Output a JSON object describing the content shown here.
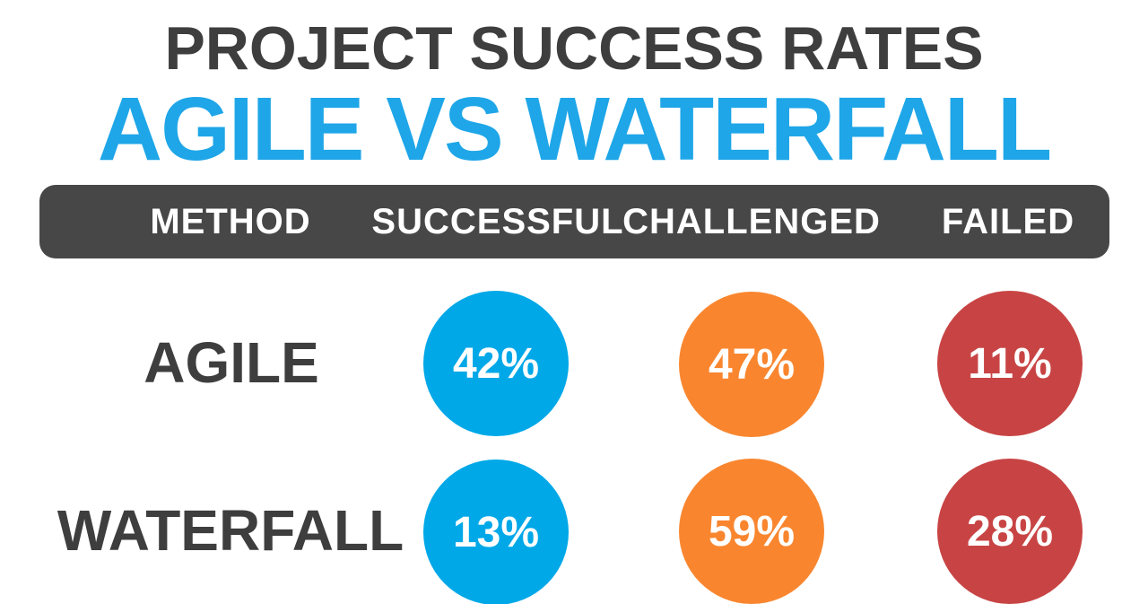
{
  "title": {
    "line1": "PROJECT SUCCESS RATES",
    "line2": "AGILE VS WATERFALL"
  },
  "colors": {
    "background": "#FFFFFF",
    "title_primary": "#3E3E3E",
    "title_accent": "#1EA6E8",
    "header_bar": "#474747",
    "header_text": "#FFFFFF",
    "row_label": "#3E3E3E",
    "successful": "#00A8E8",
    "challenged": "#F9862F",
    "failed": "#C84444"
  },
  "table": {
    "headers": [
      "METHOD",
      "SUCCESSFUL",
      "CHALLENGED",
      "FAILED"
    ],
    "rows": [
      {
        "method": "AGILE",
        "successful": "42%",
        "challenged": "47%",
        "failed": "11%"
      },
      {
        "method": "WATERFALL",
        "successful": "13%",
        "challenged": "59%",
        "failed": "28%"
      }
    ]
  },
  "chart_data": {
    "type": "table",
    "title": "PROJECT SUCCESS RATES",
    "subtitle": "AGILE VS WATERFALL",
    "columns": [
      "METHOD",
      "SUCCESSFUL",
      "CHALLENGED",
      "FAILED"
    ],
    "rows": [
      {
        "method": "AGILE",
        "successful_pct": 42,
        "challenged_pct": 47,
        "failed_pct": 11
      },
      {
        "method": "WATERFALL",
        "successful_pct": 13,
        "challenged_pct": 59,
        "failed_pct": 28
      }
    ],
    "value_unit": "%",
    "legend_colors": {
      "successful": "#00A8E8",
      "challenged": "#F9862F",
      "failed": "#C84444"
    },
    "layout_hints": {
      "header_row_style": "dark rounded bar",
      "values_rendered_as": "colored circles with white percentage text"
    }
  }
}
